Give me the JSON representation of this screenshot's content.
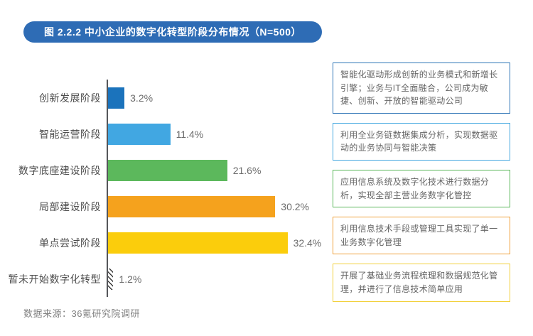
{
  "title": "图 2.2.2 中小企业的数字化转型阶段分布情况（N=500）",
  "banner_color": "#2e6cb5",
  "source": "数据来源：36氪研究院调研",
  "chart_data": {
    "type": "bar",
    "orientation": "horizontal",
    "title": "图 2.2.2 中小企业的数字化转型阶段分布情况（N=500）",
    "categories": [
      "创新发展阶段",
      "智能运营阶段",
      "数字底座建设阶段",
      "局部建设阶段",
      "单点尝试阶段",
      "暂未开始数字化转型"
    ],
    "values": [
      3.2,
      11.4,
      21.6,
      30.2,
      32.4,
      1.2
    ],
    "value_labels": [
      "3.2%",
      "11.4%",
      "21.6%",
      "30.2%",
      "32.4%",
      "1.2%"
    ],
    "colors": [
      "#1b73bc",
      "#41a7e2",
      "#5cb85c",
      "#f5a21d",
      "#fbcd0c",
      "hatched"
    ],
    "xlabel": "",
    "ylabel": "",
    "xlim": [
      0,
      35
    ],
    "grid": false,
    "legend": false
  },
  "annotations": [
    {
      "border_color": "#2e75b6",
      "text": "智能化驱动形成创新的业务模式和新增长引擎；业务与IT全面融合，公司成为敏捷、创新、开放的智能驱动公司"
    },
    {
      "border_color": "#45a8e0",
      "text": "利用全业务链数据集成分析，实现数据驱动的业务协同与智能决策"
    },
    {
      "border_color": "#5cb85c",
      "text": "应用信息系统及数字化技术进行数据分析，实现全部主营业务数字化管控"
    },
    {
      "border_color": "#f0a23c",
      "text": "利用信息技术手段或管理工具实现了单一业务数字化管理"
    },
    {
      "border_color": "#f2d03c",
      "text": "开展了基础业务流程梳理和数据规范化管理，并进行了信息技术简单应用"
    }
  ]
}
